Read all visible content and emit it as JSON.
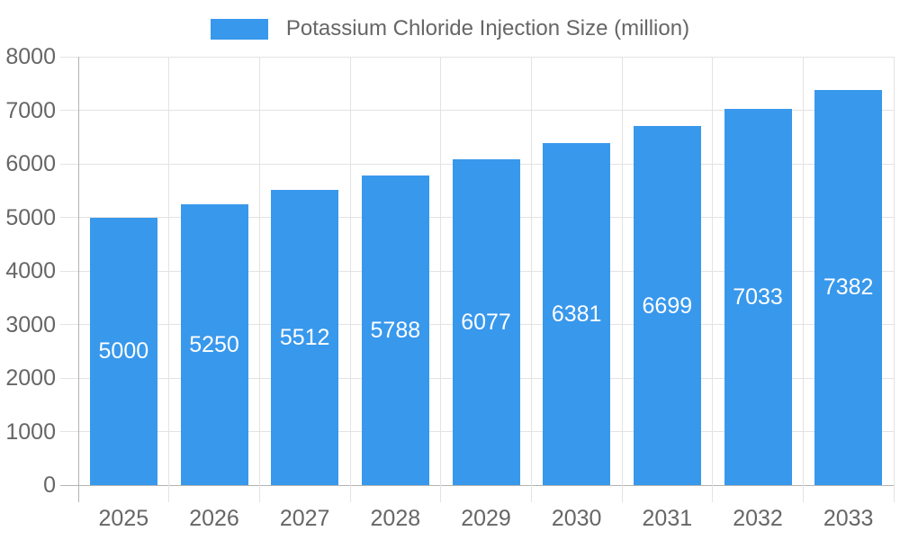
{
  "chart_data": {
    "type": "bar",
    "title": "",
    "legend": {
      "label": "Potassium Chloride Injection Size (million)",
      "position": "top"
    },
    "categories": [
      "2025",
      "2026",
      "2027",
      "2028",
      "2029",
      "2030",
      "2031",
      "2032",
      "2033"
    ],
    "series": [
      {
        "name": "Potassium Chloride Injection Size (million)",
        "values": [
          5000,
          5250,
          5512,
          5788,
          6077,
          6381,
          6699,
          7033,
          7382
        ]
      }
    ],
    "bar_labels": [
      "5000",
      "5250",
      "5512",
      "5788",
      "6077",
      "6381",
      "6699",
      "7033",
      "7382"
    ],
    "xlabel": "",
    "ylabel": "",
    "y_axis": {
      "min": 0,
      "max": 8000,
      "tick_step": 1000,
      "tick_labels": [
        "0",
        "1000",
        "2000",
        "3000",
        "4000",
        "5000",
        "6000",
        "7000",
        "8000"
      ]
    },
    "grid": true,
    "layout": {
      "legend_position": "top",
      "value_labels": "inside-center"
    },
    "colors": {
      "bar": "#3898EC",
      "bar_label_text": "#FFFFFF",
      "axis_text": "#666666",
      "gridline": "#E3E3E3",
      "axis_line": "#B3B3B3",
      "background": "#FFFFFF"
    }
  }
}
